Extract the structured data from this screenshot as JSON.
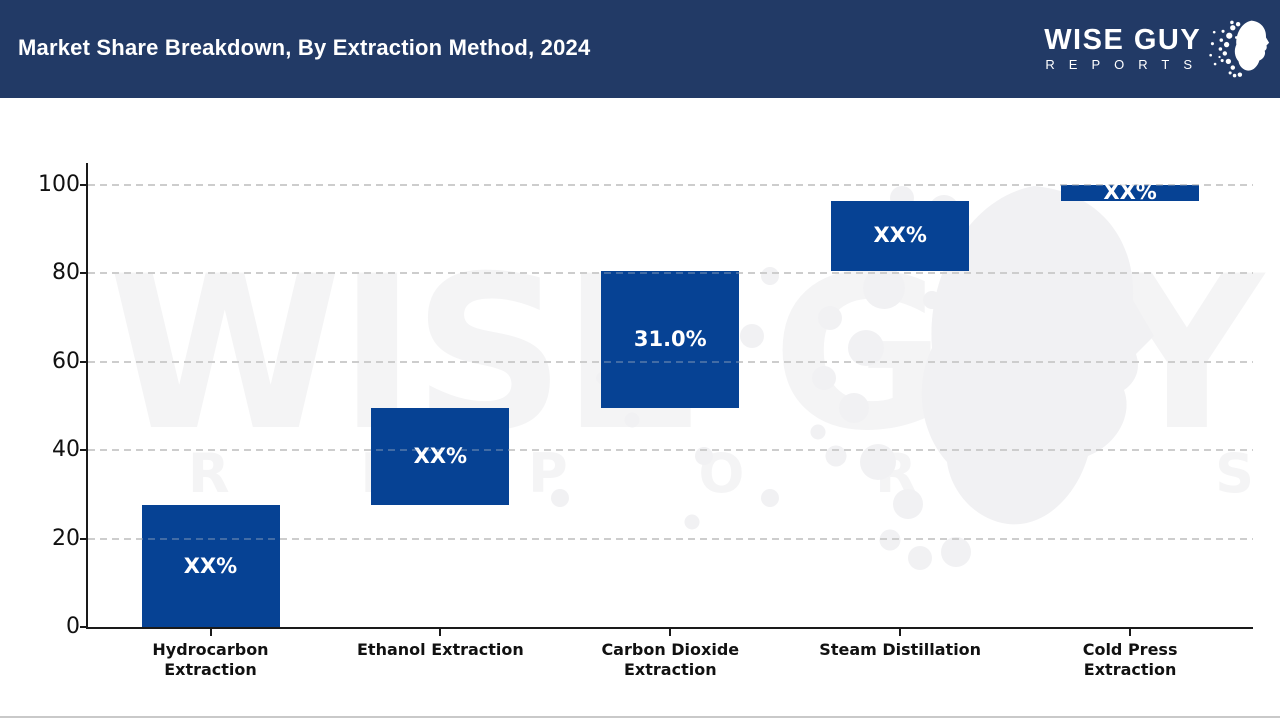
{
  "header": {
    "title": "Market Share Breakdown, By Extraction Method, 2024",
    "bg_color": "#223a66",
    "logo": {
      "wordmark": "WISE GUY",
      "subtext": "REPORTS"
    }
  },
  "watermark": {
    "line1": "WISE GUY",
    "line2": "R E P O R T S"
  },
  "chart_data": {
    "type": "bar",
    "variant": "waterfall",
    "title": "Market Share Breakdown, By Extraction Method, 2024",
    "xlabel": "",
    "ylabel": "",
    "categories": [
      [
        "Hydrocarbon",
        "Extraction"
      ],
      [
        "Ethanol Extraction"
      ],
      [
        "Carbon Dioxide",
        "Extraction"
      ],
      [
        "Steam Distillation"
      ],
      [
        "Cold Press",
        "Extraction"
      ]
    ],
    "segments": [
      {
        "category": "Hydrocarbon Extraction",
        "start": 0,
        "end": 27.5,
        "value_label": "XX%"
      },
      {
        "category": "Ethanol Extraction",
        "start": 27.5,
        "end": 49.5,
        "value_label": "XX%"
      },
      {
        "category": "Carbon Dioxide Extraction",
        "start": 49.5,
        "end": 80.5,
        "value_label": "31.0%"
      },
      {
        "category": "Steam Distillation",
        "start": 80.5,
        "end": 96.5,
        "value_label": "XX%"
      },
      {
        "category": "Cold Press Extraction",
        "start": 96.5,
        "end": 100,
        "value_label": "XX%"
      }
    ],
    "yticks": [
      0,
      20,
      40,
      60,
      80,
      100
    ],
    "ylim": [
      0,
      105
    ],
    "grid": "horizontal-dashed",
    "legend": "none",
    "bar_color": "#064294",
    "bar_label_color": "#ffffff",
    "grid_color": "#cdcdcd",
    "axis_color": "#1a1a1a"
  }
}
